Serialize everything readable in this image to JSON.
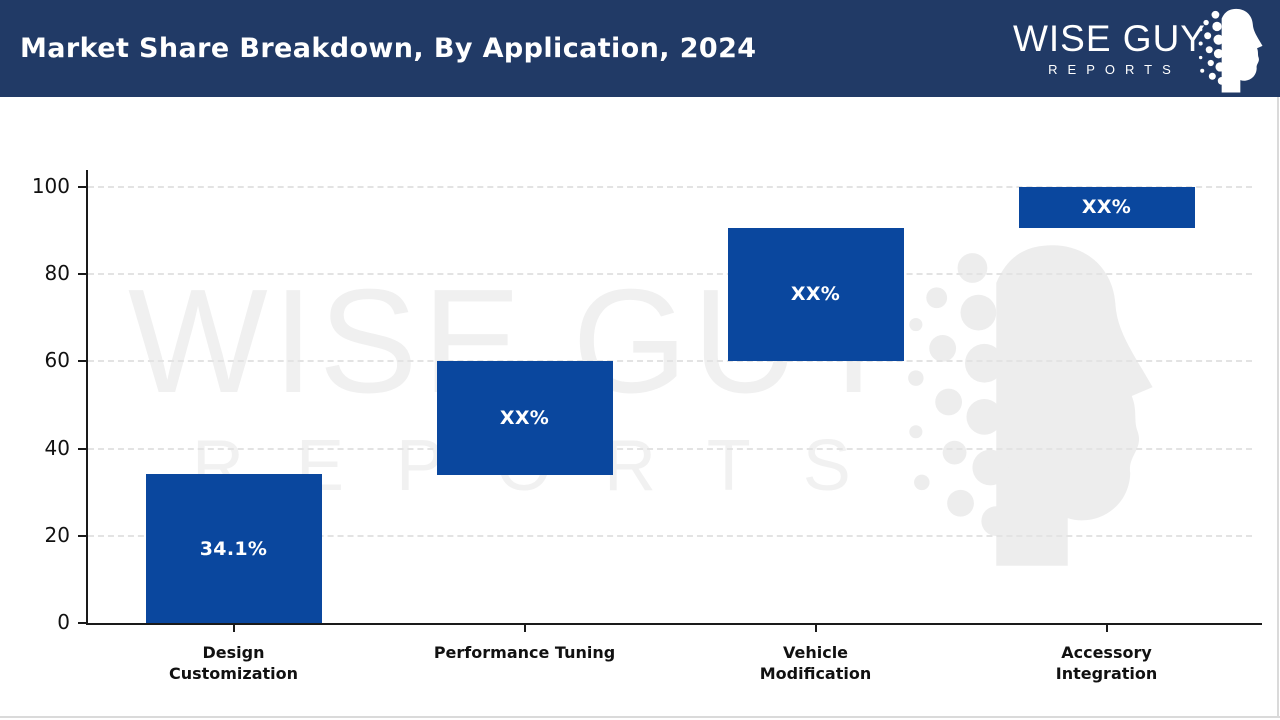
{
  "header": {
    "title": "Market Share Breakdown, By Application, 2024",
    "bg_color": "#213a66",
    "logo": {
      "wordmark": "WISE GUY",
      "subtitle": "REPORTS",
      "face_icon": "dotted-head-profile"
    }
  },
  "watermark": {
    "wordmark": "WISE GUY",
    "subtitle": "REPORTS",
    "face_icon": "dotted-head-profile"
  },
  "chart_data": {
    "type": "bar",
    "subtype": "waterfall",
    "title": "Market Share Breakdown, By Application, 2024",
    "xlabel": "",
    "ylabel": "",
    "ylim": [
      0,
      100
    ],
    "yticks": [
      0,
      20,
      40,
      60,
      80,
      100
    ],
    "grid": "horizontal-dashed",
    "legend": "none",
    "bar_color": "#0a479e",
    "value_label_color": "#ffffff",
    "categories": [
      {
        "name": "Design Customization",
        "label_lines": [
          "Design",
          "Customization"
        ]
      },
      {
        "name": "Performance Tuning",
        "label_lines": [
          "Performance Tuning"
        ]
      },
      {
        "name": "Vehicle Modification",
        "label_lines": [
          "Vehicle",
          "Modification"
        ]
      },
      {
        "name": "Accessory Integration",
        "label_lines": [
          "Accessory",
          "Integration"
        ]
      }
    ],
    "segments": [
      {
        "category": "Design Customization",
        "start": 0,
        "end": 34.1,
        "value_label": "34.1%"
      },
      {
        "category": "Performance Tuning",
        "start": 33.9,
        "end": 60.2,
        "value_label": "XX%"
      },
      {
        "category": "Vehicle Modification",
        "start": 60.2,
        "end": 90.6,
        "value_label": "XX%"
      },
      {
        "category": "Accessory Integration",
        "start": 90.6,
        "end": 100,
        "value_label": "XX%"
      }
    ]
  }
}
